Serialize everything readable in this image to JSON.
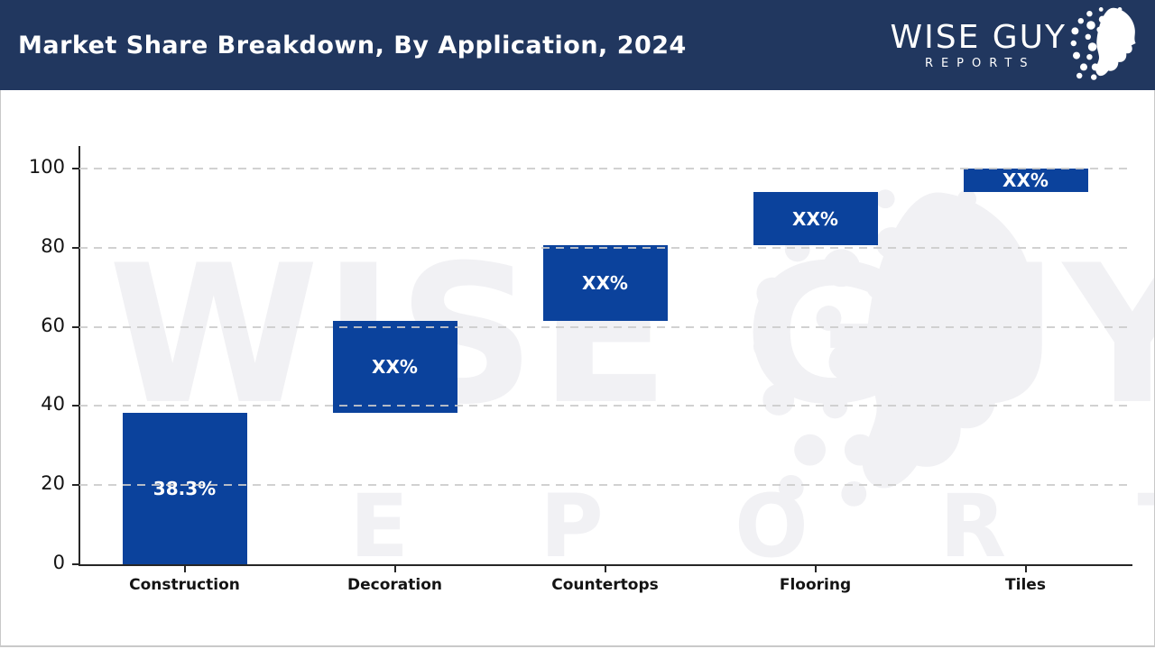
{
  "header": {
    "title": "Market Share Breakdown, By Application, 2024",
    "logo": {
      "line1": "WISE GUY",
      "line2": "REPORTS"
    }
  },
  "watermark": {
    "line1": "WISE GUY",
    "line2": "REPORTS"
  },
  "chart_data": {
    "type": "bar",
    "variant": "waterfall",
    "title": "Market Share Breakdown, By Application, 2024",
    "categories": [
      "Construction",
      "Decoration",
      "Countertops",
      "Flooring",
      "Tiles"
    ],
    "segments": [
      {
        "category": "Construction",
        "start": 0,
        "end": 38.3,
        "label": "38.3%"
      },
      {
        "category": "Decoration",
        "start": 38.3,
        "end": 61.4,
        "label": "XX%"
      },
      {
        "category": "Countertops",
        "start": 61.4,
        "end": 80.6,
        "label": "XX%"
      },
      {
        "category": "Flooring",
        "start": 80.6,
        "end": 94.0,
        "label": "XX%"
      },
      {
        "category": "Tiles",
        "start": 94.0,
        "end": 100.0,
        "label": "XX%"
      }
    ],
    "xlabel": "",
    "ylabel": "",
    "ylim": [
      0,
      100
    ],
    "yticks": [
      0,
      20,
      40,
      60,
      80,
      100
    ],
    "grid": "horizontal-dashed",
    "legend": "none",
    "bar_color": "#0b429c",
    "bar_label_color": "#ffffff"
  },
  "colors": {
    "header_bg": "#21375f",
    "bar": "#0b429c",
    "axis": "#262626",
    "grid": "#cccccc",
    "watermark": "#f1f1f4",
    "border": "#c9c9c9"
  }
}
